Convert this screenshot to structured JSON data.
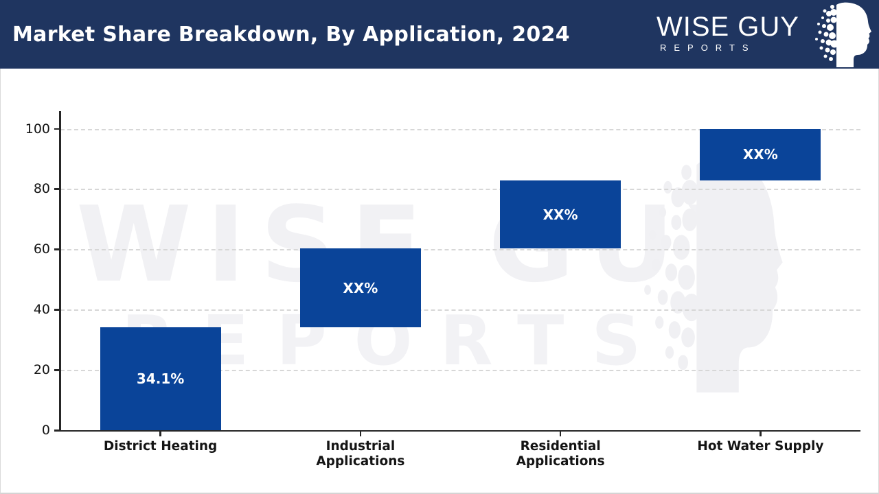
{
  "header": {
    "title": "Market Share Breakdown, By Application, 2024",
    "logo": {
      "name": "WISE GUY",
      "tagline": "REPORTS"
    }
  },
  "watermark": {
    "line1": "WISE GUY",
    "line2": "REPORTS"
  },
  "chart_data": {
    "type": "bar",
    "variant": "waterfall",
    "title": "Market Share Breakdown, By Application, 2024",
    "categories": [
      "District Heating",
      "Industrial Applications",
      "Residential Applications",
      "Hot Water Supply"
    ],
    "category_lines": [
      [
        "District Heating"
      ],
      [
        "Industrial",
        "Applications"
      ],
      [
        "Residential",
        "Applications"
      ],
      [
        "Hot Water Supply"
      ]
    ],
    "series": [
      {
        "name": "Market Share (%)",
        "segments": [
          {
            "category": "District Heating",
            "start": 0,
            "end": 34.1,
            "label": "34.1%"
          },
          {
            "category": "Industrial Applications",
            "start": 34.1,
            "end": 60.2,
            "label": "XX%"
          },
          {
            "category": "Residential Applications",
            "start": 60.2,
            "end": 82.8,
            "label": "XX%"
          },
          {
            "category": "Hot Water Supply",
            "start": 82.8,
            "end": 100,
            "label": "XX%"
          }
        ]
      }
    ],
    "ylim": [
      0,
      100
    ],
    "yticks": [
      0,
      20,
      40,
      60,
      80,
      100
    ],
    "xlabel": "",
    "ylabel": "",
    "grid": "horizontal-dashed",
    "legend": "none",
    "colors": {
      "bar": "#0a4499",
      "bar_label": "#ffffff",
      "axis": "#262626",
      "grid": "#d7d7d7",
      "header_bg": "#1f3560",
      "header_text": "#ffffff",
      "watermark": "#f1f1f4",
      "page_bg": "#ffffff"
    }
  }
}
